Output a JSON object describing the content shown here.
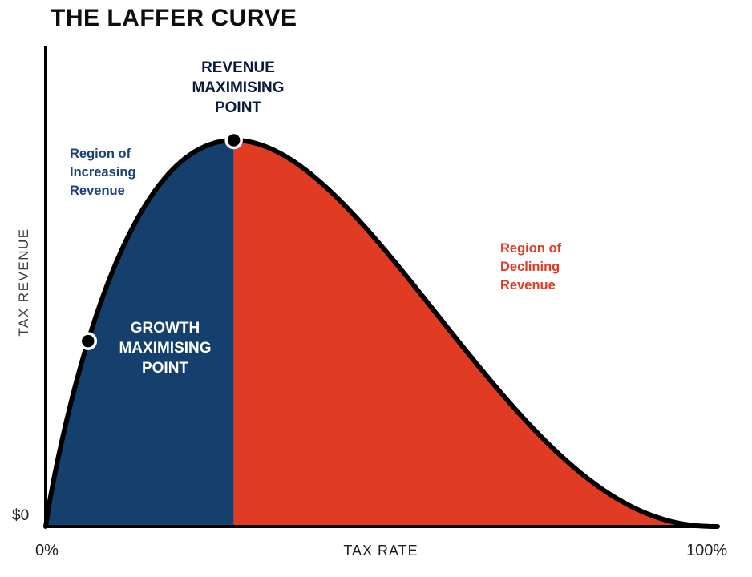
{
  "page": {
    "title": "THE LAFFER CURVE"
  },
  "colors": {
    "region_increasing_fill": "#15406d",
    "region_declining_fill": "#e13b23",
    "curve_stroke": "#000000",
    "axis_stroke": "#000000",
    "marker_fill": "#000000",
    "marker_ring": "#ffffff"
  },
  "chart_data": {
    "type": "area",
    "title": "THE LAFFER CURVE",
    "xlabel": "TAX RATE",
    "ylabel": "TAX REVENUE",
    "x_ticks": [
      {
        "label": "0%",
        "value": 0
      },
      {
        "label": "100%",
        "value": 1
      }
    ],
    "y_ticks": [
      {
        "label": "$0",
        "value": 0
      }
    ],
    "curve": {
      "model": "y = (x^a * (1-x)^b) / ymax, x in [0,1] of tax rate",
      "a": 0.9,
      "b": 2.31,
      "peak_x": 0.28,
      "samples": 160
    },
    "regions": [
      {
        "id": "increasing",
        "label": "Region of\nIncreasing\nRevenue",
        "x_from": 0,
        "x_to": 0.28,
        "fill": "#15406d",
        "text_color": "#1a4078"
      },
      {
        "id": "declining",
        "label": "Region of\nDeclining\nRevenue",
        "x_from": 0.28,
        "x_to": 1,
        "fill": "#e13b23",
        "text_color": "#e23a22"
      }
    ],
    "points": [
      {
        "id": "revenue_max",
        "label": "REVENUE\nMAXIMISING\nPOINT",
        "x": 0.28,
        "y": 1.0,
        "label_color": "#0b1d3a"
      },
      {
        "id": "growth_max",
        "label": "GROWTH\nMAXIMISING\nPOINT",
        "x": 0.063,
        "y": 0.48,
        "label_color": "#ffffff"
      }
    ]
  }
}
